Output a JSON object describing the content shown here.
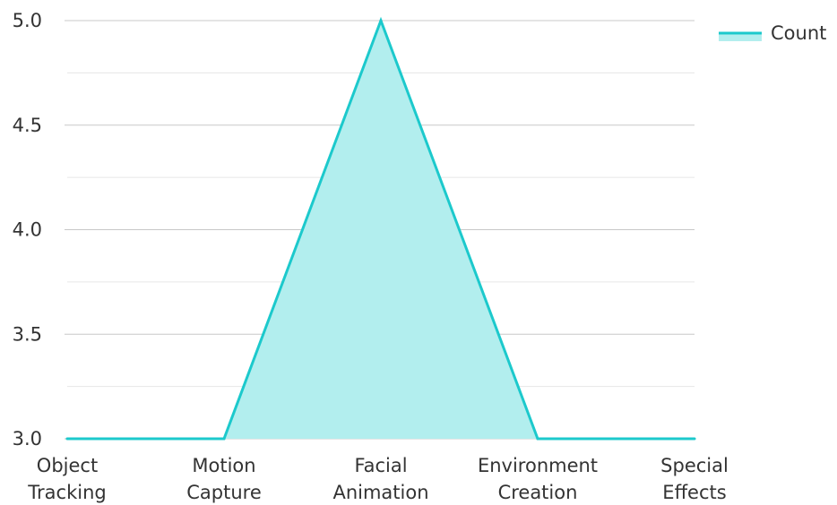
{
  "chart_data": {
    "type": "area",
    "categories": [
      [
        "Object",
        "Tracking"
      ],
      [
        "Motion",
        "Capture"
      ],
      [
        "Facial",
        "Animation"
      ],
      [
        "Environment",
        "Creation"
      ],
      [
        "Special",
        "Effects"
      ]
    ],
    "series": [
      {
        "name": "Count",
        "values": [
          3,
          3,
          5,
          3,
          3
        ]
      }
    ],
    "ylim": [
      3.0,
      5.0
    ],
    "yticks": [
      "3.0",
      "3.5",
      "4.0",
      "4.5",
      "5.0"
    ],
    "ytick_values": [
      3.0,
      3.5,
      4.0,
      4.5,
      5.0
    ],
    "minor_gridlines": [
      3.25,
      3.75,
      4.25,
      4.75
    ],
    "grid": true,
    "legend": "top-right",
    "colors": {
      "line": "#1cc9cc",
      "fill": "#b2eeee",
      "grid": "#c8c8c8",
      "minor_grid": "#e6e6e6",
      "text": "#333333"
    }
  }
}
